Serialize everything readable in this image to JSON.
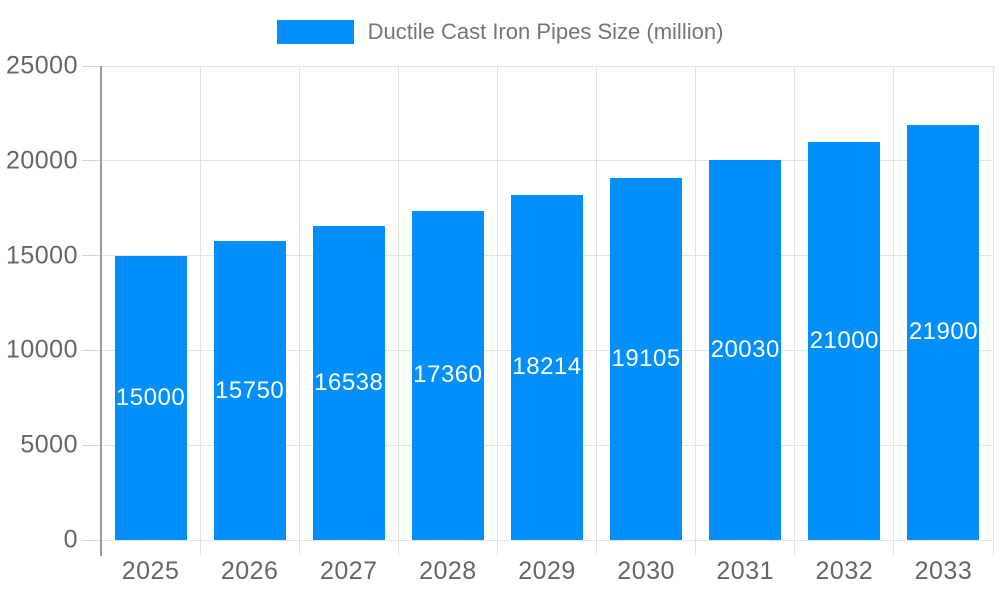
{
  "legend": {
    "label": "Ductile Cast Iron Pipes Size (million)",
    "position": "top"
  },
  "colors": {
    "bar": "#008FFB",
    "grid_line": "#e2e2e2",
    "axis_line": "#9b9b9b",
    "tick_line": "#d4d4d4",
    "axis_label_text": "#666666",
    "legend_text": "#757575",
    "bar_label_text": "#ffffff",
    "background": "#ffffff"
  },
  "chart_data": {
    "type": "bar",
    "title": "Ductile Cast Iron Pipes Size (million)",
    "categories": [
      "2025",
      "2026",
      "2027",
      "2028",
      "2029",
      "2030",
      "2031",
      "2032",
      "2033"
    ],
    "values": [
      15000,
      15750,
      16538,
      17360,
      18214,
      19105,
      20030,
      21000,
      21900
    ],
    "xlabel": "",
    "ylabel": "",
    "ylim": [
      0,
      25000
    ],
    "yticks": [
      0,
      5000,
      10000,
      15000,
      20000,
      25000
    ],
    "grid": "on",
    "legend_position": "top",
    "bar_label_position": "inside-center"
  }
}
